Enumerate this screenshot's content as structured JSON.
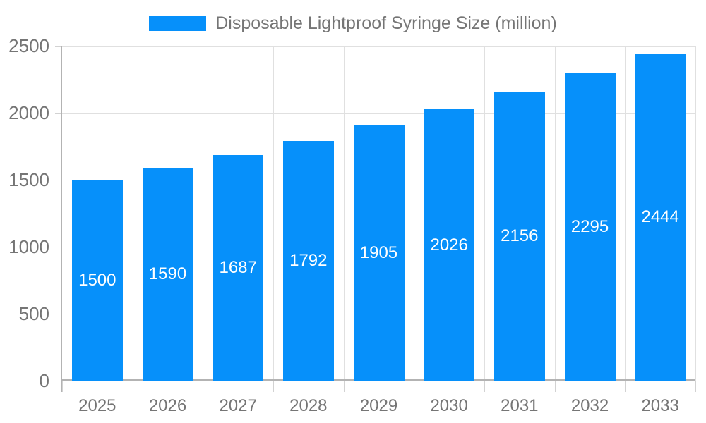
{
  "legend": {
    "label": "Disposable Lightproof Syringe Size (million)"
  },
  "chart_data": {
    "type": "bar",
    "title": "Disposable Lightproof Syringe Size (million)",
    "categories": [
      "2025",
      "2026",
      "2027",
      "2028",
      "2029",
      "2030",
      "2031",
      "2032",
      "2033"
    ],
    "series": [
      {
        "name": "Disposable Lightproof Syringe Size (million)",
        "values": [
          1500,
          1590,
          1687,
          1792,
          1905,
          2026,
          2156,
          2295,
          2444
        ]
      }
    ],
    "xlabel": "",
    "ylabel": "",
    "ylim": [
      0,
      2500
    ],
    "yticks": [
      0,
      500,
      1000,
      1500,
      2000,
      2500
    ],
    "grid": true,
    "legend_position": "top",
    "value_labels": "inside-center"
  },
  "colors": {
    "bar": "#0690fa",
    "grid": "#e0e0e0",
    "axis": "#b3b3b3",
    "tick": "#d2d2d2",
    "text": "#757575",
    "bar_label": "#ffffff",
    "background": "#ffffff"
  }
}
